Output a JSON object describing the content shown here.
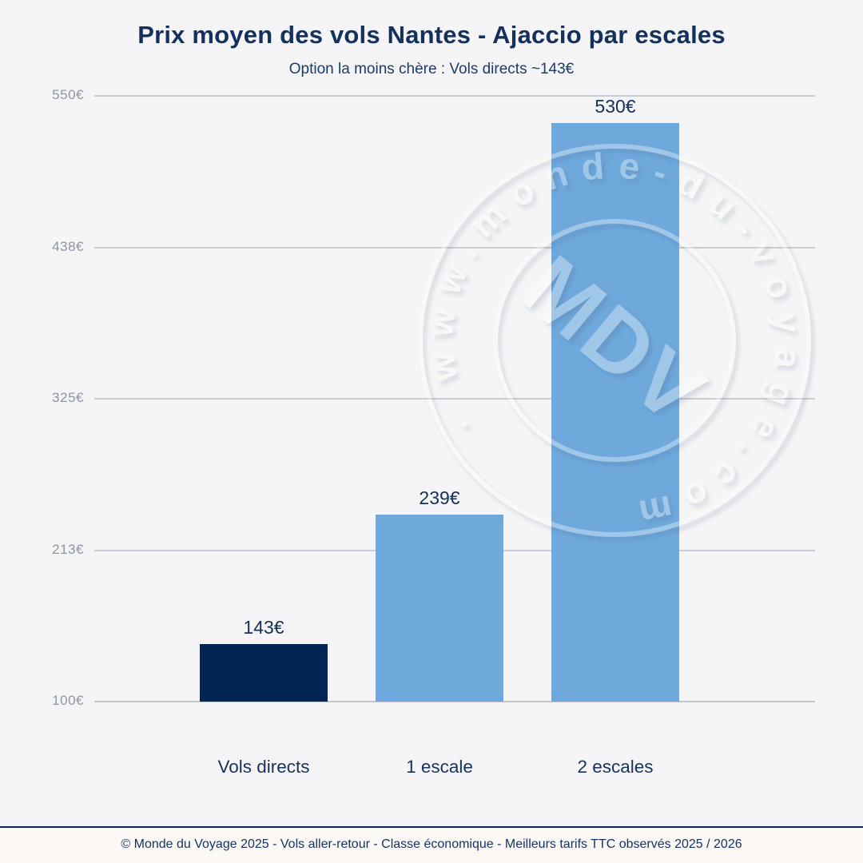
{
  "chart_data": {
    "type": "bar",
    "title": "Prix moyen des vols Nantes - Ajaccio par escales",
    "subtitle": "Option la moins chère : Vols directs ~143€",
    "categories": [
      "Vols directs",
      "1 escale",
      "2 escales"
    ],
    "values": [
      143,
      239,
      530
    ],
    "value_labels": [
      "143€",
      "239€",
      "530€"
    ],
    "bar_colors": [
      "#032554",
      "#6FA9DC",
      "#6FA9DC"
    ],
    "xlabel": "",
    "ylabel": "",
    "ylim": [
      100,
      550
    ],
    "yticks": [
      {
        "value": 550,
        "label": "550€"
      },
      {
        "value": 437.5,
        "label": "438€"
      },
      {
        "value": 325,
        "label": "325€"
      },
      {
        "value": 212.5,
        "label": "213€"
      },
      {
        "value": 100,
        "label": "100€"
      }
    ],
    "grid": true,
    "legend": false
  },
  "watermark": {
    "ring_text": "· www.monde-du-voyage.com",
    "center_text": "MDV"
  },
  "footer": {
    "text": "© Monde du Voyage 2025 - Vols aller-retour - Classe économique - Meilleurs tarifs TTC observés 2025 / 2026"
  },
  "colors": {
    "background": "#f5f5f7",
    "title_navy": "#14315d",
    "bar_dark": "#032554",
    "bar_light": "#6FA9DC",
    "gridline": "#c9ccd4",
    "ytick_gray": "#8d95a4",
    "footer_line": "#0e2a4e"
  }
}
